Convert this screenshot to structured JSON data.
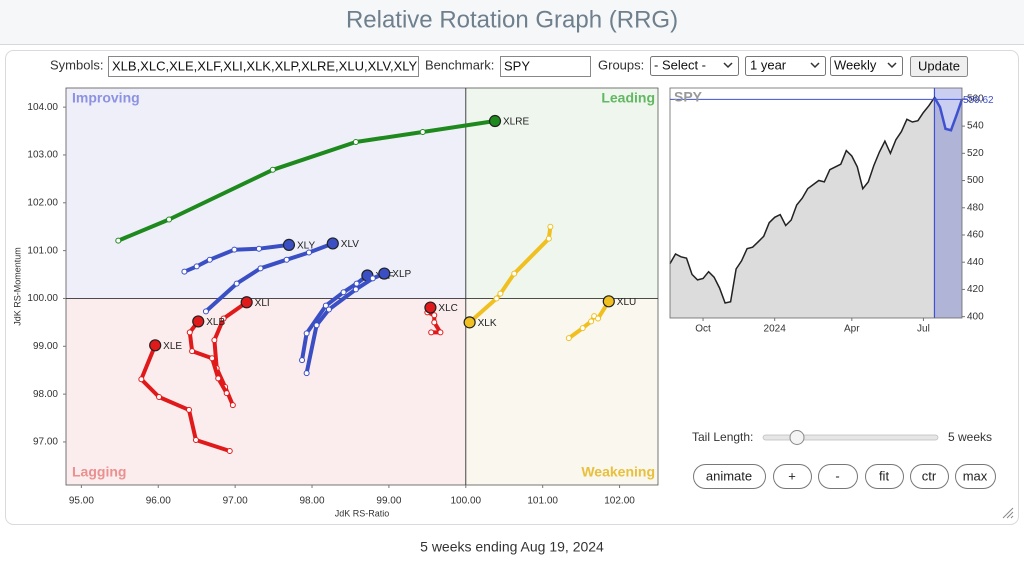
{
  "title": "Relative Rotation Graph (RRG)",
  "controls": {
    "symbols_label": "Symbols:",
    "symbols": "XLB,XLC,XLE,XLF,XLI,XLK,XLP,XLRE,XLU,XLV,XLY",
    "benchmark_label": "Benchmark:",
    "benchmark": "SPY",
    "groups_label": "Groups:",
    "groups": "- Select -",
    "period": "1 year",
    "interval": "Weekly",
    "update": "Update",
    "tail_length_label": "Tail Length:",
    "tail_length": "5 weeks",
    "buttons": [
      "animate",
      "+",
      "-",
      "fit",
      "ctr",
      "max"
    ]
  },
  "chart_data": [
    {
      "type": "rrg",
      "x_label": "JdK RS-Ratio",
      "y_label": "JdK RS-Momentum",
      "xlim": [
        94.8,
        102.5
      ],
      "ylim": [
        96.1,
        104.4
      ],
      "center": 100,
      "xticks": [
        {
          "value": 95,
          "label": "95.00"
        },
        {
          "value": 96,
          "label": "96.00"
        },
        {
          "value": 97,
          "label": "97.00"
        },
        {
          "value": 98,
          "label": "98.00"
        },
        {
          "value": 99,
          "label": "99.00"
        },
        {
          "value": 100,
          "label": "100.00"
        },
        {
          "value": 101,
          "label": "101.00"
        },
        {
          "value": 102,
          "label": "102.00"
        }
      ],
      "yticks": [
        {
          "value": 97,
          "label": "97.00"
        },
        {
          "value": 98,
          "label": "98.00"
        },
        {
          "value": 99,
          "label": "99.00"
        },
        {
          "value": 100,
          "label": "100.00"
        },
        {
          "value": 101,
          "label": "101.00"
        },
        {
          "value": 102,
          "label": "102.00"
        },
        {
          "value": 103,
          "label": "103.00"
        },
        {
          "value": 104,
          "label": "104.00"
        }
      ],
      "quadrants": [
        {
          "name": "Improving",
          "color": "#8c92e2",
          "bg": "#efeff9"
        },
        {
          "name": "Leading",
          "color": "#62b862",
          "bg": "#eef6ee"
        },
        {
          "name": "Lagging",
          "color": "#ec8f8f",
          "bg": "#fbeded"
        },
        {
          "name": "Weakening",
          "color": "#e8c03c",
          "bg": "#faf7ee"
        }
      ],
      "series": [
        {
          "name": "XLRE",
          "color": "#1e8a1e",
          "x": [
            95.48,
            96.14,
            97.49,
            98.57,
            99.44,
            100.38
          ],
          "y": [
            101.21,
            101.65,
            102.69,
            103.27,
            103.48,
            103.71
          ]
        },
        {
          "name": "XLY",
          "color": "#3a4fc4",
          "x": [
            96.34,
            96.5,
            96.67,
            96.99,
            97.31,
            97.7
          ],
          "y": [
            100.56,
            100.67,
            100.81,
            101.02,
            101.04,
            101.12
          ]
        },
        {
          "name": "XLV",
          "color": "#3a4fc4",
          "x": [
            96.62,
            97.02,
            97.33,
            97.67,
            97.96,
            98.27
          ],
          "y": [
            99.73,
            100.31,
            100.63,
            100.81,
            100.96,
            101.15
          ]
        },
        {
          "name": "XLF",
          "color": "#3a4fc4",
          "x": [
            97.87,
            97.93,
            98.18,
            98.41,
            98.58,
            98.72
          ],
          "y": [
            98.71,
            99.27,
            99.85,
            100.13,
            100.31,
            100.48
          ]
        },
        {
          "name": "XLP",
          "color": "#3a4fc4",
          "x": [
            97.93,
            98.06,
            98.22,
            98.57,
            98.79,
            98.94
          ],
          "y": [
            98.44,
            99.44,
            99.77,
            100.19,
            100.42,
            100.52
          ]
        },
        {
          "name": "XLI",
          "color": "#e01a1a",
          "x": [
            96.97,
            96.87,
            96.76,
            96.73,
            96.85,
            97.15
          ],
          "y": [
            97.77,
            98.15,
            98.54,
            99.13,
            99.58,
            99.92
          ]
        },
        {
          "name": "XLB",
          "color": "#e01a1a",
          "x": [
            96.89,
            96.78,
            96.7,
            96.44,
            96.41,
            96.52
          ],
          "y": [
            98.02,
            98.33,
            98.75,
            98.9,
            99.29,
            99.52
          ]
        },
        {
          "name": "XLE",
          "color": "#e01a1a",
          "x": [
            96.93,
            96.49,
            96.4,
            96.01,
            95.78,
            95.96
          ],
          "y": [
            96.81,
            97.04,
            97.67,
            97.94,
            98.31,
            99.02
          ]
        },
        {
          "name": "XLC",
          "color": "#e01a1a",
          "x": [
            99.55,
            99.67,
            99.59,
            99.59,
            99.5,
            99.54
          ],
          "y": [
            99.29,
            99.29,
            99.5,
            99.65,
            99.71,
            99.81
          ]
        },
        {
          "name": "XLK",
          "color": "#f0c020",
          "x": [
            101.1,
            101.08,
            100.63,
            100.45,
            100.4,
            100.05
          ],
          "y": [
            101.5,
            101.25,
            100.52,
            100.1,
            100.0,
            99.5
          ]
        },
        {
          "name": "XLU",
          "color": "#f0c020",
          "x": [
            101.34,
            101.52,
            101.63,
            101.67,
            101.72,
            101.86
          ],
          "y": [
            99.17,
            99.38,
            99.52,
            99.63,
            99.58,
            99.94
          ]
        }
      ]
    },
    {
      "type": "line",
      "title": "SPY",
      "color": "#222222",
      "highlight_color": "#3f51d0",
      "categories": [
        null,
        null,
        null,
        null,
        null,
        null,
        "Oct",
        null,
        null,
        null,
        null,
        null,
        null,
        null,
        null,
        null,
        null,
        null,
        null,
        "2024",
        null,
        null,
        null,
        null,
        null,
        null,
        null,
        null,
        null,
        null,
        null,
        null,
        null,
        "Apr",
        null,
        null,
        null,
        null,
        null,
        null,
        null,
        null,
        null,
        null,
        null,
        null,
        "Jul",
        null,
        null,
        null,
        null,
        null,
        null,
        null
      ],
      "values": [
        439,
        446,
        444,
        443,
        431,
        427,
        428,
        433,
        429,
        421,
        410,
        411,
        435,
        441,
        450,
        451,
        455,
        459,
        469,
        473,
        475,
        467,
        471,
        482,
        487,
        494,
        497,
        500,
        499,
        508,
        510,
        512,
        522,
        518,
        510,
        494,
        499,
        511,
        521,
        529,
        520,
        530,
        536,
        545,
        543,
        544,
        550,
        555,
        561,
        554,
        538,
        537,
        548,
        559.62
      ],
      "ylim": [
        399,
        568
      ],
      "yticks": [
        400,
        420,
        440,
        460,
        480,
        500,
        520,
        540,
        560
      ]
    }
  ],
  "footer": "5 weeks ending Aug 19, 2024"
}
